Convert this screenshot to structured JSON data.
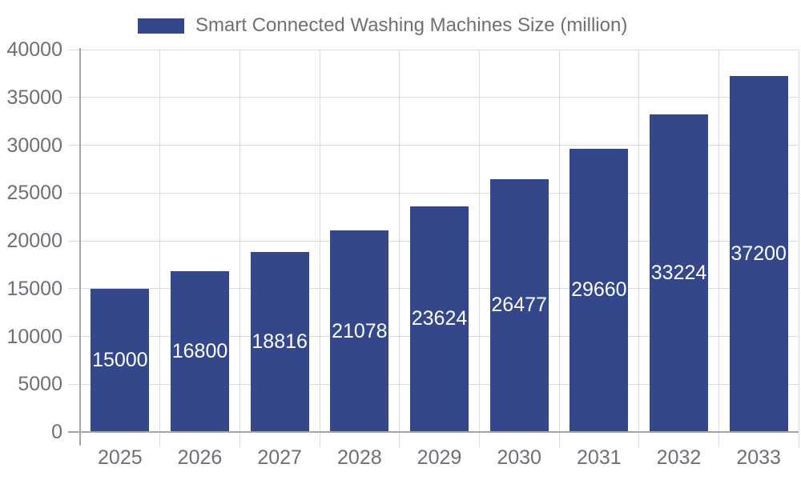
{
  "chart_data": {
    "type": "bar",
    "title": "Smart Connected Washing Machines Size (million)",
    "legend": {
      "label": "Smart Connected Washing Machines Size (million)",
      "position": "top"
    },
    "categories": [
      "2025",
      "2026",
      "2027",
      "2028",
      "2029",
      "2030",
      "2031",
      "2032",
      "2033"
    ],
    "series": [
      {
        "name": "Smart Connected Washing Machines Size (million)",
        "values": [
          15000,
          16800,
          18816,
          21078,
          23624,
          26477,
          29660,
          33224,
          37200
        ]
      }
    ],
    "xlabel": "",
    "ylabel": "",
    "ylim": [
      0,
      40000
    ],
    "yticks": [
      0,
      5000,
      10000,
      15000,
      20000,
      25000,
      30000,
      35000,
      40000
    ],
    "grid": true,
    "bar_labels_visible": true,
    "bar_label_position": "inside-center",
    "colors": {
      "bar": "#35478B",
      "bar_label": "#FFFFFF",
      "axis_label": "#6E7079",
      "legend_text": "#6E7079",
      "grid_line": "#DCDCDC",
      "axis_line": "#A6A6A6",
      "background": "#FFFFFF"
    }
  }
}
